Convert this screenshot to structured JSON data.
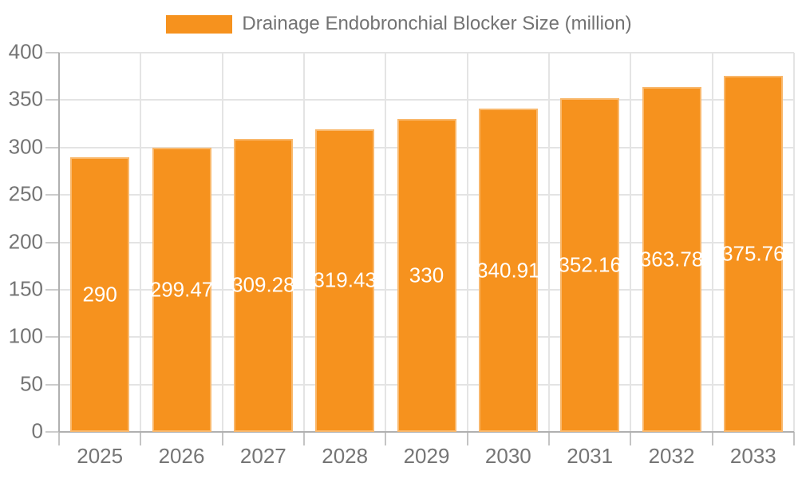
{
  "chart_data": {
    "type": "bar",
    "title": "Drainage Endobronchial Blocker Size (million)",
    "categories": [
      "2025",
      "2026",
      "2027",
      "2028",
      "2029",
      "2030",
      "2031",
      "2032",
      "2033"
    ],
    "values": [
      290,
      299.47,
      309.28,
      319.43,
      330,
      340.91,
      352.16,
      363.78,
      375.76
    ],
    "value_labels": [
      "290",
      "299.47",
      "309.28",
      "319.43",
      "330",
      "340.91",
      "352.16",
      "363.78",
      "375.76"
    ],
    "xlabel": "",
    "ylabel": "",
    "ylim": [
      0,
      400
    ],
    "yticks": [
      0,
      50,
      100,
      150,
      200,
      250,
      300,
      350,
      400
    ],
    "grid": true,
    "legend_position": "top-center",
    "colors": {
      "bar": "#f6921e",
      "bar_label": "#ffffff",
      "axis_line": "#b0b0b0",
      "gridline": "#e4e4e4",
      "tick_label": "#757575",
      "legend_text": "#737373",
      "background": "#ffffff"
    }
  }
}
